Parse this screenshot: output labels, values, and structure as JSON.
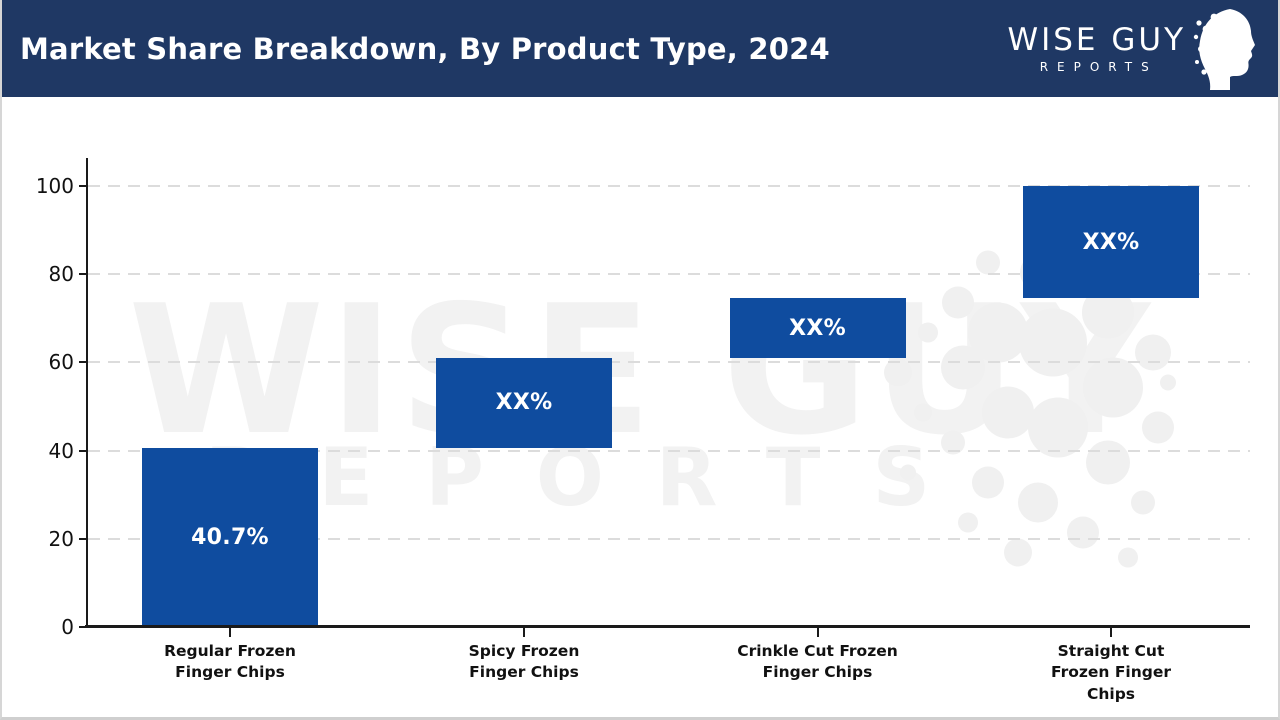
{
  "header": {
    "title": "Market Share Breakdown, By Product Type, 2024",
    "logo": {
      "line1": "WISE GUY",
      "line2": "REPORTS"
    }
  },
  "watermark": {
    "line1": "WISE GUY",
    "line2": "REPORTS"
  },
  "chart_data": {
    "type": "bar",
    "subtype": "waterfall",
    "title": "Market Share Breakdown, By Product Type, 2024",
    "categories": [
      "Regular Frozen\nFinger Chips",
      "Spicy Frozen\nFinger Chips",
      "Crinkle Cut Frozen\nFinger Chips",
      "Straight Cut\nFrozen Finger\nChips"
    ],
    "segments": [
      {
        "start": 0,
        "end": 40.7,
        "value": 40.7,
        "label": "40.7%"
      },
      {
        "start": 40.7,
        "end": 61.1,
        "value": 20.4,
        "label": "XX%"
      },
      {
        "start": 61.1,
        "end": 74.5,
        "value": 13.4,
        "label": "XX%"
      },
      {
        "start": 74.5,
        "end": 100,
        "value": 25.5,
        "label": "XX%"
      }
    ],
    "xlabel": "",
    "ylabel": "",
    "ylim": [
      0,
      105
    ],
    "yticks": [
      0,
      20,
      40,
      60,
      80,
      100
    ],
    "bar_color": "#0f4c9f",
    "grid": "horizontal-dashed",
    "legend": "none"
  }
}
